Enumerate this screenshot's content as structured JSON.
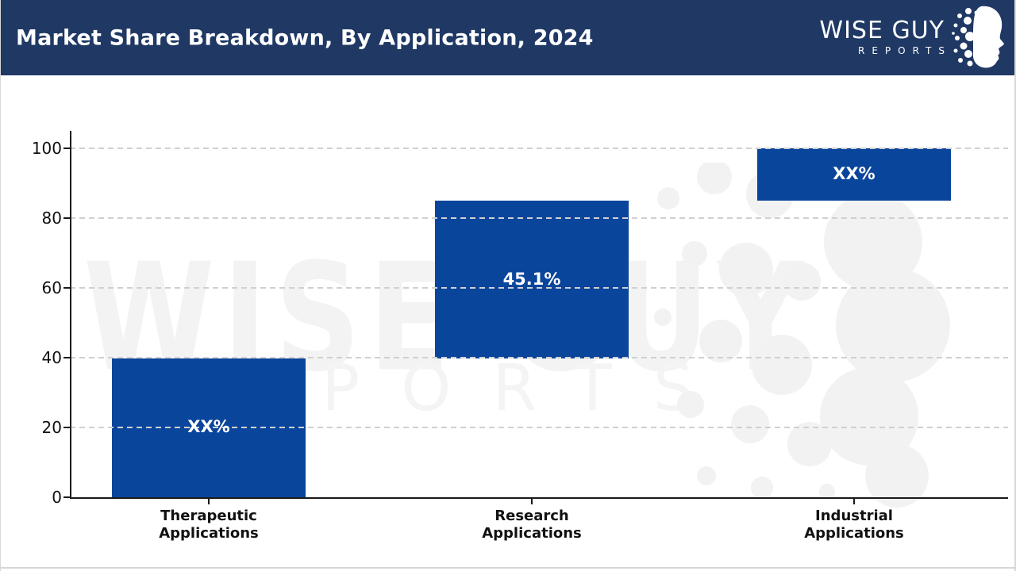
{
  "header": {
    "title": "Market Share Breakdown, By Application, 2024",
    "bg_color": "#1f3864",
    "logo": {
      "name": "WISE GUY",
      "sub": "REPORTS"
    }
  },
  "watermark": {
    "line1": "WISE GUY",
    "line2": "REPORTS"
  },
  "chart_data": {
    "type": "bar",
    "subtype": "floating-waterfall",
    "title": "Market Share Breakdown, By Application, 2024",
    "xlabel": "",
    "ylabel": "",
    "ylim": [
      0,
      100
    ],
    "yticks": [
      0,
      20,
      40,
      60,
      80,
      100
    ],
    "grid": "horizontal-dashed",
    "legend": null,
    "categories": [
      {
        "line1": "Therapeutic",
        "line2": "Applications"
      },
      {
        "line1": "Research",
        "line2": "Applications"
      },
      {
        "line1": "Industrial",
        "line2": "Applications"
      }
    ],
    "bars": [
      {
        "category": "Therapeutic Applications",
        "from": 0,
        "to": 39.8,
        "value": 39.8,
        "label": "XX%"
      },
      {
        "category": "Research Applications",
        "from": 39.8,
        "to": 84.9,
        "value": 45.1,
        "label": "45.1%"
      },
      {
        "category": "Industrial Applications",
        "from": 84.9,
        "to": 99.9,
        "value": 15.0,
        "label": "XX%"
      }
    ],
    "colors": {
      "bar": "#0a459c",
      "bar_label": "#ffffff",
      "axis": "#1a1a1a",
      "grid": "#d0d0d0",
      "header_bg": "#1f3864",
      "watermark": "#f3f3f3"
    }
  }
}
